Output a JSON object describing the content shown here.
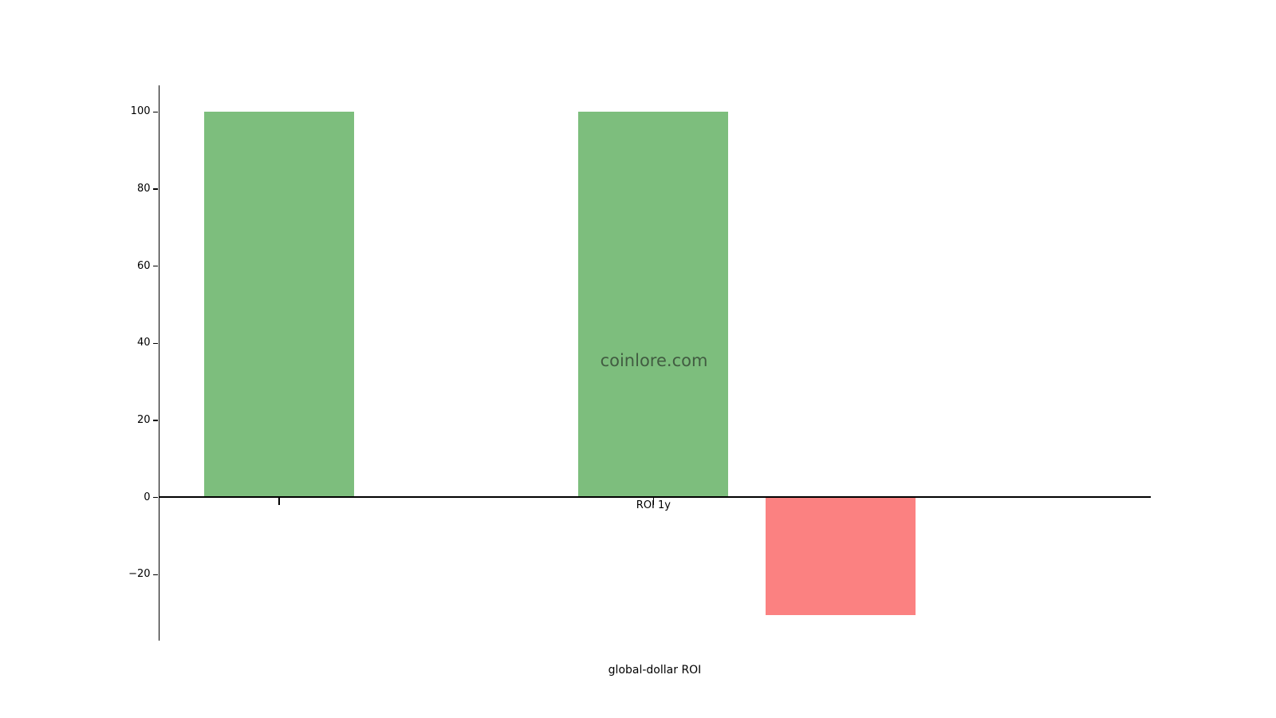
{
  "chart_data": {
    "type": "bar",
    "title": "",
    "xlabel": "global-dollar ROI",
    "ylabel": "",
    "watermark": "coinlore.com",
    "ylim": [
      -37.1,
      106.9
    ],
    "grid": false,
    "legend": null,
    "yticks": [
      {
        "value": 100,
        "label": "100"
      },
      {
        "value": 80,
        "label": "80"
      },
      {
        "value": 60,
        "label": "60"
      },
      {
        "value": 40,
        "label": "40"
      },
      {
        "value": 20,
        "label": "20"
      },
      {
        "value": 0,
        "label": "0"
      },
      {
        "value": -20,
        "label": "−20"
      }
    ],
    "x_ticks": [
      {
        "slot": 0,
        "label": ""
      },
      {
        "slot": 2,
        "label": "ROI 1y"
      }
    ],
    "bars": [
      {
        "slot": 0,
        "label": "",
        "value": 100,
        "color": "#7dbe7d"
      },
      {
        "slot": 2,
        "label": "ROI 1y",
        "value": 100,
        "color": "#7dbe7d"
      },
      {
        "slot": 3,
        "label": "",
        "value": -30.4,
        "color": "#fb8181"
      }
    ],
    "colors": {
      "positive": "#7dbe7d",
      "negative": "#fb8181",
      "axis": "#000000",
      "background": "#ffffff"
    }
  }
}
